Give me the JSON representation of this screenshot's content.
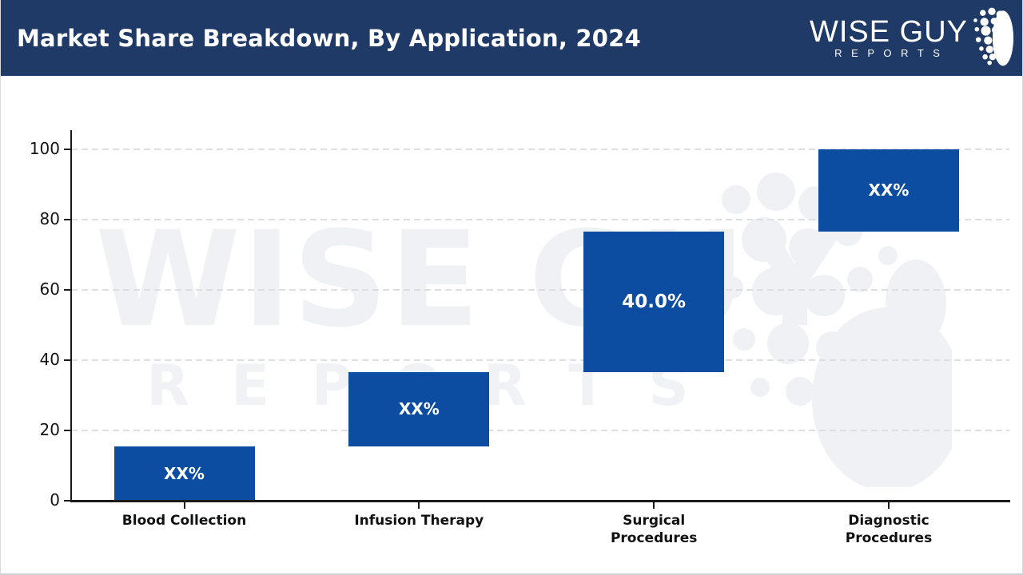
{
  "header": {
    "title": "Market Share Breakdown, By Application, 2024",
    "bg_color": "#1f3a67",
    "logo": {
      "name": "WISE GUY",
      "subtitle": "R E P O R T S"
    }
  },
  "watermark": {
    "line1": "WISE GUY",
    "line2": "R E P O R T S"
  },
  "chart_data": {
    "type": "bar",
    "subtype": "waterfall",
    "title": "Market Share Breakdown, By Application, 2024",
    "xlabel": "",
    "ylabel": "",
    "ylim": [
      0,
      105
    ],
    "yticks": [
      0,
      20,
      40,
      60,
      80,
      100
    ],
    "grid": "horizontal-dashed",
    "legend": "none",
    "bar_color": "#0c4da2",
    "bar_label_color": "#ffffff",
    "gridline_color": "#dcdee1",
    "categories": [
      {
        "label": "Blood Collection",
        "lines": [
          "Blood Collection"
        ]
      },
      {
        "label": "Infusion Therapy",
        "lines": [
          "Infusion Therapy"
        ]
      },
      {
        "label": "Surgical Procedures",
        "lines": [
          "Surgical",
          "Procedures"
        ]
      },
      {
        "label": "Diagnostic Procedures",
        "lines": [
          "Diagnostic",
          "Procedures"
        ]
      }
    ],
    "segments": [
      {
        "category": "Blood Collection",
        "start": 0,
        "end": 15.5,
        "value_label": "XX%",
        "label_size": 20
      },
      {
        "category": "Infusion Therapy",
        "start": 15.5,
        "end": 36.5,
        "value_label": "XX%",
        "label_size": 20
      },
      {
        "category": "Surgical Procedures",
        "start": 36.5,
        "end": 76.5,
        "value_label": "40.0%",
        "label_size": 23
      },
      {
        "category": "Diagnostic Procedures",
        "start": 76.5,
        "end": 100,
        "value_label": "XX%",
        "label_size": 20
      }
    ]
  }
}
